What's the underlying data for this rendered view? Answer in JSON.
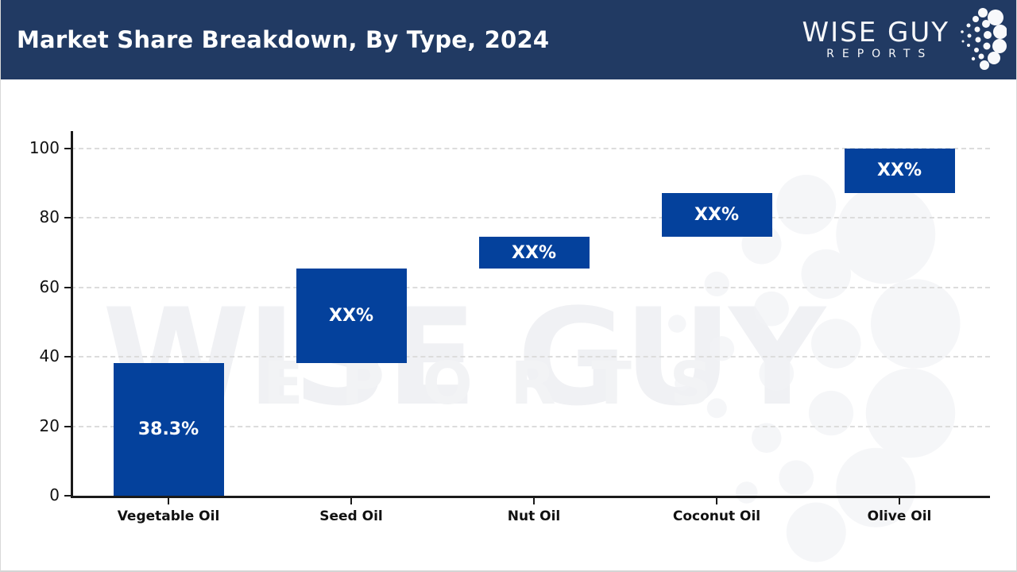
{
  "header": {
    "title": "Market Share Breakdown, By Type, 2024",
    "logo": {
      "line1": "WISE GUY",
      "line2": "REPORTS"
    }
  },
  "watermark": {
    "line1": "WISE GUY",
    "line2": "REPORTS"
  },
  "colors": {
    "header_bg": "#213a63",
    "bar": "#04419c",
    "axis": "#1a1a1a",
    "grid": "#dcdcdc",
    "bar_label": "#ffffff",
    "watermark": "#f0f1f4"
  },
  "chart_data": {
    "type": "bar",
    "subtype": "waterfall",
    "title": "Market Share Breakdown, By Type, 2024",
    "xlabel": "",
    "ylabel": "",
    "ylim": [
      0,
      100
    ],
    "yticks": [
      0,
      20,
      40,
      60,
      80,
      100
    ],
    "grid": "horizontal-dashed",
    "legend": "none",
    "categories": [
      "Vegetable Oil",
      "Seed Oil",
      "Nut Oil",
      "Coconut Oil",
      "Olive Oil"
    ],
    "segments": [
      {
        "category": "Vegetable Oil",
        "start": 0,
        "end": 38.3,
        "label": "38.3%"
      },
      {
        "category": "Seed Oil",
        "start": 38.3,
        "end": 65.4,
        "label": "XX%"
      },
      {
        "category": "Nut Oil",
        "start": 65.4,
        "end": 74.6,
        "label": "XX%"
      },
      {
        "category": "Coconut Oil",
        "start": 74.6,
        "end": 87.2,
        "label": "XX%"
      },
      {
        "category": "Olive Oil",
        "start": 87.2,
        "end": 100,
        "label": "XX%"
      }
    ]
  }
}
